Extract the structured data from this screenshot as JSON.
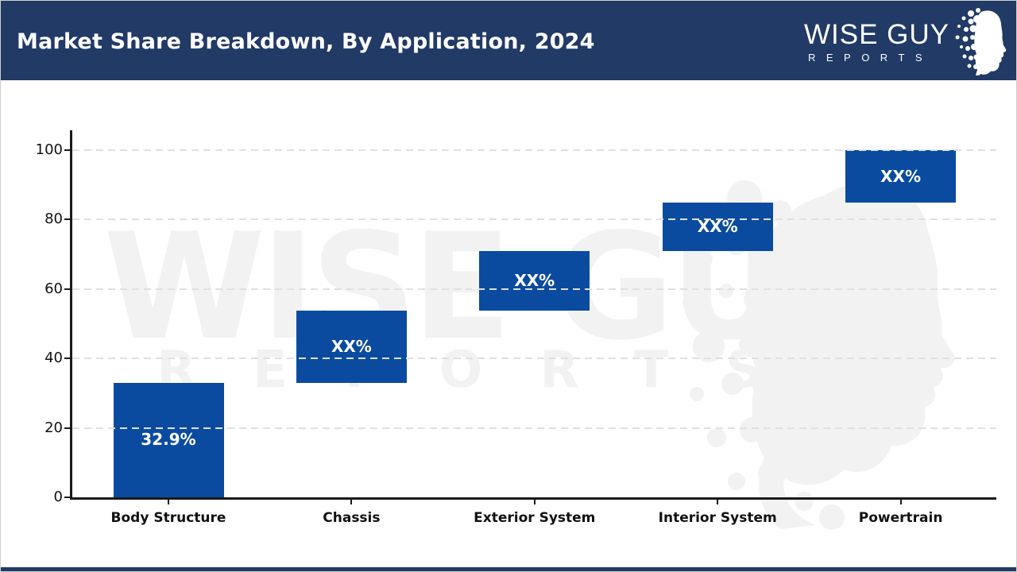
{
  "header": {
    "title": "Market Share Breakdown, By Application, 2024",
    "logo": {
      "line1": "WISE GUY",
      "line2": "REPORTS"
    }
  },
  "watermark": {
    "line1": "WISE GUY",
    "line2": "REPORTS"
  },
  "colors": {
    "header_bg": "#213a66",
    "bar": "#0a4ba0",
    "grid": "#e0e0e0",
    "axis": "#1a1a1a",
    "watermark": "#f2f2f2"
  },
  "chart_data": {
    "type": "bar",
    "subtype": "waterfall",
    "title": "Market Share Breakdown, By Application, 2024",
    "categories": [
      "Body Structure",
      "Chassis",
      "Exterior System",
      "Interior System",
      "Powertrain"
    ],
    "segments": [
      {
        "category": "Body Structure",
        "start": 0,
        "end": 32.9,
        "label": "32.9%"
      },
      {
        "category": "Chassis",
        "start": 32.9,
        "end": 53.7,
        "label": "XX%"
      },
      {
        "category": "Exterior System",
        "start": 53.7,
        "end": 70.9,
        "label": "XX%"
      },
      {
        "category": "Interior System",
        "start": 70.9,
        "end": 84.8,
        "label": "XX%"
      },
      {
        "category": "Powertrain",
        "start": 84.8,
        "end": 100,
        "label": "XX%"
      }
    ],
    "yticks": [
      0,
      20,
      40,
      60,
      80,
      100
    ],
    "ylim": [
      0,
      105
    ],
    "xlabel": "",
    "ylabel": "",
    "grid": "dashed-horizontal",
    "legend": "none",
    "bar_color": "#0a4ba0"
  }
}
